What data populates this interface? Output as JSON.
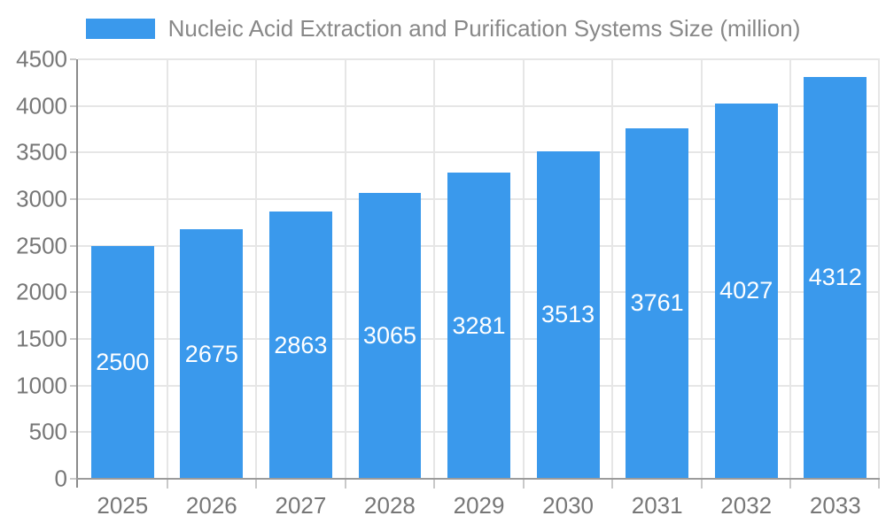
{
  "chart_data": {
    "type": "bar",
    "title": "Nucleic Acid Extraction and Purification Systems Size (million)",
    "legend_position": "top",
    "categories": [
      "2025",
      "2026",
      "2027",
      "2028",
      "2029",
      "2030",
      "2031",
      "2032",
      "2033"
    ],
    "values": [
      2500,
      2675,
      2863,
      3065,
      3281,
      3513,
      3761,
      4027,
      4312
    ],
    "xlabel": "",
    "ylabel": "",
    "ylim": [
      0,
      4500
    ],
    "yticks": [
      0,
      500,
      1000,
      1500,
      2000,
      2500,
      3000,
      3500,
      4000,
      4500
    ],
    "grid": true,
    "value_labels_shown": true,
    "colors": {
      "bar": "#3A99EC",
      "value_label": "#FFFFFF",
      "axis_text": "#777777",
      "legend_text": "#888888",
      "gridline": "#E6E6E6",
      "tick": "#C9C9C9",
      "axis_line": "#9B9B9B",
      "axis_line_dark": "#8A8A8A"
    }
  }
}
